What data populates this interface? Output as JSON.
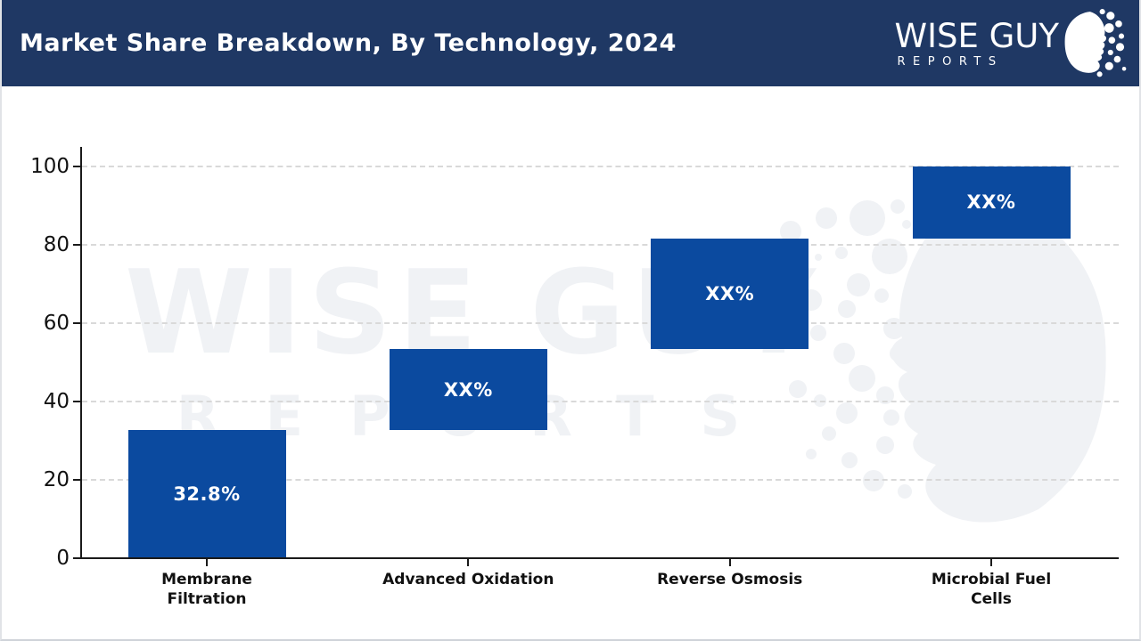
{
  "header": {
    "title": "Market Share Breakdown, By Technology, 2024",
    "logo": {
      "name": "WISE GUY",
      "subtitle": "REPORTS"
    }
  },
  "watermark": {
    "name": "WISE GUY",
    "subtitle": "REPORTS"
  },
  "chart_data": {
    "type": "bar",
    "subtype": "waterfall",
    "title": "Market Share Breakdown, By Technology, 2024",
    "categories": [
      "Membrane\nFiltration",
      "Advanced Oxidation",
      "Reverse Osmosis",
      "Microbial Fuel\nCells"
    ],
    "bar_labels": [
      "32.8%",
      "XX%",
      "XX%",
      "XX%"
    ],
    "segments": [
      {
        "category": "Membrane Filtration",
        "start": 0,
        "end": 32.8
      },
      {
        "category": "Advanced Oxidation",
        "start": 32.8,
        "end": 53.3
      },
      {
        "category": "Reverse Osmosis",
        "start": 53.3,
        "end": 81.6
      },
      {
        "category": "Microbial Fuel Cells",
        "start": 81.6,
        "end": 100
      }
    ],
    "xlabel": "",
    "ylabel": "",
    "ylim": [
      0,
      105
    ],
    "yticks": [
      0,
      20,
      40,
      60,
      80,
      100
    ],
    "grid": "dashed-horizontal",
    "colors": {
      "bar": "#0b4a9f",
      "bar_label": "#ffffff",
      "axis": "#1a1a1a",
      "gridline": "#d9d9d9",
      "header_bg": "#1f3864",
      "watermark": "#f0f2f5"
    }
  }
}
